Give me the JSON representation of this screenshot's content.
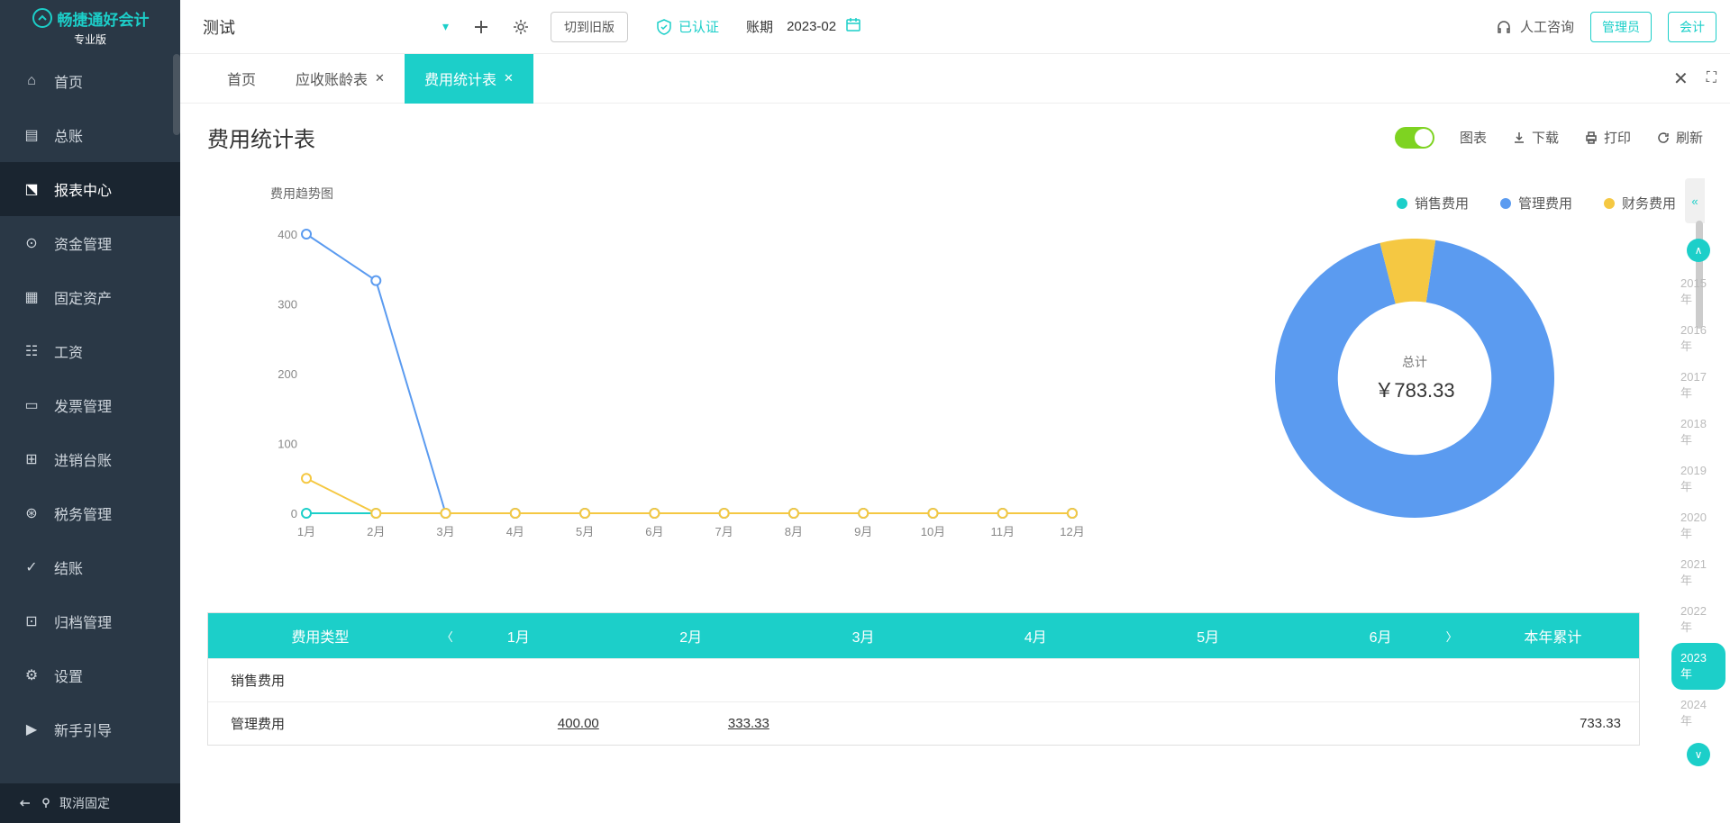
{
  "brand": {
    "name": "畅捷通好会计",
    "edition": "专业版"
  },
  "account_selector": {
    "value": "测试"
  },
  "header": {
    "old_version_btn": "切到旧版",
    "verified": "已认证",
    "period_label": "账期",
    "period_value": "2023-02",
    "consult": "人工咨询",
    "role_admin": "管理员",
    "role_acc": "会计"
  },
  "sidebar": {
    "items": [
      {
        "label": "首页"
      },
      {
        "label": "总账"
      },
      {
        "label": "报表中心"
      },
      {
        "label": "资金管理"
      },
      {
        "label": "固定资产"
      },
      {
        "label": "工资"
      },
      {
        "label": "发票管理"
      },
      {
        "label": "进销台账"
      },
      {
        "label": "税务管理"
      },
      {
        "label": "结账"
      },
      {
        "label": "归档管理"
      },
      {
        "label": "设置"
      },
      {
        "label": "新手引导"
      }
    ],
    "active_index": 2,
    "footer": "取消固定"
  },
  "tabs": {
    "items": [
      {
        "label": "首页",
        "closable": false
      },
      {
        "label": "应收账龄表",
        "closable": true
      },
      {
        "label": "费用统计表",
        "closable": true
      }
    ],
    "active_index": 2
  },
  "page": {
    "title": "费用统计表",
    "actions": {
      "chart_toggle": "图表",
      "download": "下载",
      "print": "打印",
      "refresh": "刷新"
    }
  },
  "chart": {
    "title": "费用趋势图",
    "legend": [
      {
        "label": "销售费用",
        "color": "#1ccfc9"
      },
      {
        "label": "管理费用",
        "color": "#5b9bf0"
      },
      {
        "label": "财务费用",
        "color": "#f5c842"
      }
    ],
    "line": {
      "type": "line",
      "x_labels": [
        "1月",
        "2月",
        "3月",
        "4月",
        "5月",
        "6月",
        "7月",
        "8月",
        "9月",
        "10月",
        "11月",
        "12月"
      ],
      "y_ticks": [
        0,
        100,
        200,
        300,
        400
      ],
      "ylim": [
        0,
        400
      ],
      "series": [
        {
          "name": "销售费用",
          "color": "#1ccfc9",
          "values": [
            0,
            0,
            0,
            0,
            0,
            0,
            0,
            0,
            0,
            0,
            0,
            0
          ],
          "marker": "circle",
          "marker_size": 5,
          "line_width": 2
        },
        {
          "name": "管理费用",
          "color": "#5b9bf0",
          "values": [
            400,
            333.33,
            0,
            0,
            0,
            0,
            0,
            0,
            0,
            0,
            0,
            0
          ],
          "marker": "circle",
          "marker_size": 5,
          "line_width": 2
        },
        {
          "name": "财务费用",
          "color": "#f5c842",
          "values": [
            50,
            0,
            0,
            0,
            0,
            0,
            0,
            0,
            0,
            0,
            0,
            0
          ],
          "marker": "circle",
          "marker_size": 5,
          "line_width": 2
        }
      ],
      "axis_color": "#ccc",
      "label_fontsize": 13,
      "label_color": "#888"
    },
    "donut": {
      "type": "donut",
      "center_label": "总计",
      "center_value": "￥783.33",
      "slices": [
        {
          "label": "管理费用",
          "value": 733.33,
          "color": "#5b9bf0"
        },
        {
          "label": "财务费用",
          "value": 50,
          "color": "#f5c842"
        },
        {
          "label": "销售费用",
          "value": 0,
          "color": "#1ccfc9"
        }
      ],
      "inner_radius_ratio": 0.55,
      "outer_radius": 155
    }
  },
  "years": {
    "items": [
      "2015年",
      "2016年",
      "2017年",
      "2018年",
      "2019年",
      "2020年",
      "2021年",
      "2022年",
      "2023年",
      "2024年"
    ],
    "active_index": 8
  },
  "table": {
    "type": "table",
    "header_bg": "#1ccfc9",
    "header_color": "#ffffff",
    "columns": [
      "费用类型",
      "1月",
      "2月",
      "3月",
      "4月",
      "5月",
      "6月",
      "本年累计"
    ],
    "rows": [
      {
        "label": "销售费用",
        "values": [
          "",
          "",
          "",
          "",
          "",
          "",
          ""
        ]
      },
      {
        "label": "管理费用",
        "values": [
          "400.00",
          "333.33",
          "",
          "",
          "",
          "",
          "733.33"
        ],
        "underlined": [
          0,
          1
        ]
      }
    ]
  }
}
